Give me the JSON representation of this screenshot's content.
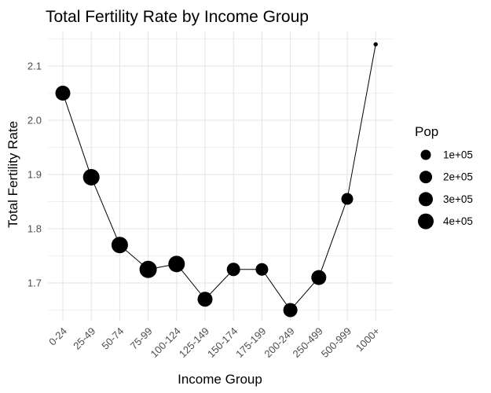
{
  "chart_data": {
    "type": "scatter",
    "subtype": "bubble-line",
    "title": "Total Fertility Rate by Income Group",
    "xlabel": "Income Group",
    "ylabel": "Total Fertility Rate",
    "categories": [
      "0-24",
      "25-49",
      "50-74",
      "75-99",
      "100-124",
      "125-149",
      "150-174",
      "175-199",
      "200-249",
      "250-499",
      "500-999",
      "1000+"
    ],
    "series": [
      {
        "name": "Total Fertility Rate",
        "values": [
          2.05,
          1.895,
          1.77,
          1.725,
          1.735,
          1.67,
          1.725,
          1.725,
          1.65,
          1.71,
          1.855,
          2.14
        ],
        "pop_approx": [
          320000,
          430000,
          430000,
          470000,
          430000,
          330000,
          230000,
          190000,
          270000,
          320000,
          150000,
          10000
        ],
        "point_radius_px": [
          9.5,
          10.5,
          10.5,
          11,
          10.5,
          9.5,
          8.5,
          8,
          9,
          9.5,
          7.5,
          2.7
        ]
      }
    ],
    "y_ticks": [
      1.7,
      1.8,
      1.9,
      2.0,
      2.1
    ],
    "y_minor_ticks": [
      1.65,
      1.75,
      1.85,
      1.95,
      2.05,
      2.15
    ],
    "ylim": [
      1.62,
      2.16
    ],
    "grid": "on",
    "legend": {
      "title": "Pop",
      "position": "right",
      "entries": [
        {
          "label": "1e+05",
          "r": 6.5
        },
        {
          "label": "2e+05",
          "r": 8
        },
        {
          "label": "3e+05",
          "r": 9
        },
        {
          "label": "4e+05",
          "r": 10
        }
      ]
    },
    "colors": {
      "point": "#000000",
      "line": "#000000",
      "grid_major": "#e3e3e3",
      "grid_minor": "#f0f0f0",
      "tick_label": "#4d4d4d",
      "text": "#000000",
      "background": "#ffffff"
    }
  }
}
